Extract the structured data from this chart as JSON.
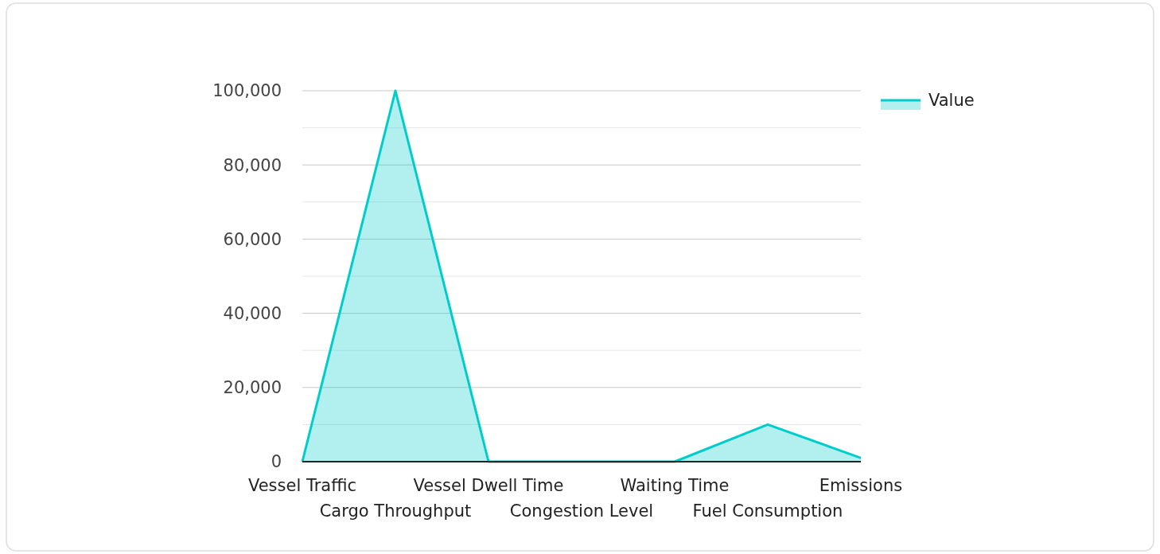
{
  "chart_data": {
    "type": "area",
    "categories": [
      "Vessel Traffic",
      "Cargo Throughput",
      "Vessel Dwell Time",
      "Congestion Level",
      "Waiting Time",
      "Fuel Consumption",
      "Emissions"
    ],
    "series": [
      {
        "name": "Value",
        "color": "#00cccc",
        "values": [
          0,
          100000,
          0,
          0,
          0,
          10000,
          1000
        ]
      }
    ],
    "ylim": [
      0,
      100000
    ],
    "yticks": [
      0,
      {
        "value": 10000,
        "label": null
      },
      {
        "value": 20000,
        "label": "20,000"
      },
      {
        "value": 30000,
        "label": null
      },
      {
        "value": 40000,
        "label": "40,000"
      },
      {
        "value": 50000,
        "label": null
      },
      {
        "value": 60000,
        "label": "60,000"
      },
      {
        "value": 70000,
        "label": null
      },
      {
        "value": 80000,
        "label": "80,000"
      },
      {
        "value": 90000,
        "label": null
      },
      {
        "value": 100000,
        "label": "100,000"
      }
    ],
    "grid": "y",
    "legend": "top right"
  }
}
